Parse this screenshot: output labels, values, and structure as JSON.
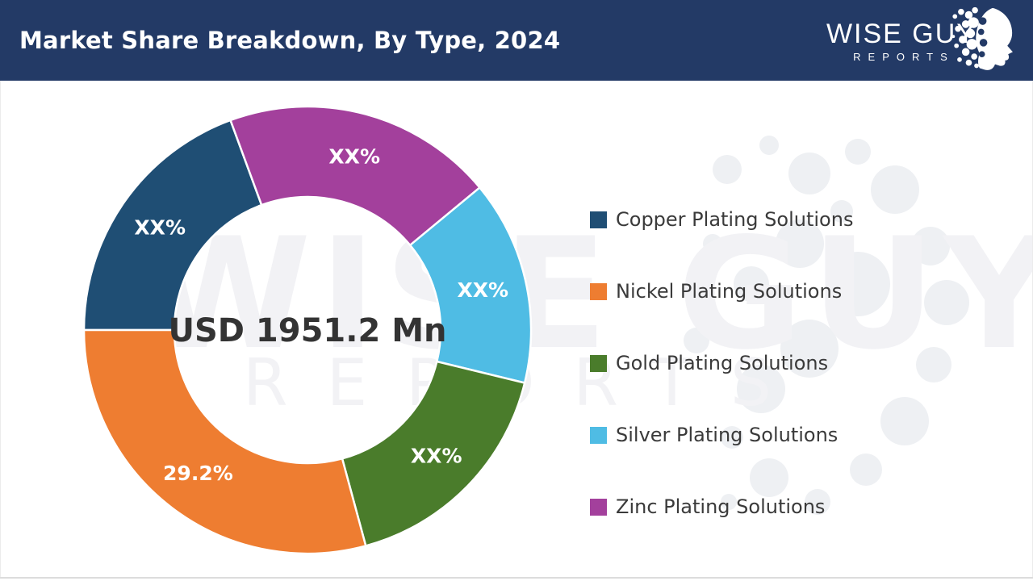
{
  "header": {
    "title": "Market Share Breakdown, By Type, 2024",
    "logo": {
      "line1": "WISE GUY",
      "line2": "REPORTS"
    }
  },
  "watermark": {
    "line1": "WISE GUY",
    "line2": "REPORTS"
  },
  "chart_data": {
    "type": "pie",
    "donut": true,
    "title": "Market Share Breakdown, By Type, 2024",
    "center_text": "USD 1951.2 Mn",
    "start_angle_deg": 180,
    "direction": "clockwise",
    "segments": [
      {
        "name": "Copper Plating Solutions",
        "color": "#1F4E74",
        "pct": 19.4,
        "label": "XX%"
      },
      {
        "name": "Zinc Plating Solutions",
        "color": "#A3409C",
        "pct": 19.6,
        "label": "XX%"
      },
      {
        "name": "Silver Plating Solutions",
        "color": "#4FBCE4",
        "pct": 14.8,
        "label": "XX%"
      },
      {
        "name": "Gold Plating Solutions",
        "color": "#4A7C2B",
        "pct": 17.0,
        "label": "XX%"
      },
      {
        "name": "Nickel Plating Solutions",
        "color": "#EE7D31",
        "pct": 29.2,
        "label": "29.2%"
      }
    ],
    "legend_order": [
      "Copper Plating Solutions",
      "Nickel Plating Solutions",
      "Gold Plating Solutions",
      "Silver Plating Solutions",
      "Zinc Plating Solutions"
    ],
    "legend_position": "right"
  },
  "colors": {
    "header_bg": "#233A66",
    "title_text": "#FFFFFF",
    "legend_text": "#3A3A3A",
    "center_text": "#333333",
    "watermark": "#F2F2F5"
  }
}
